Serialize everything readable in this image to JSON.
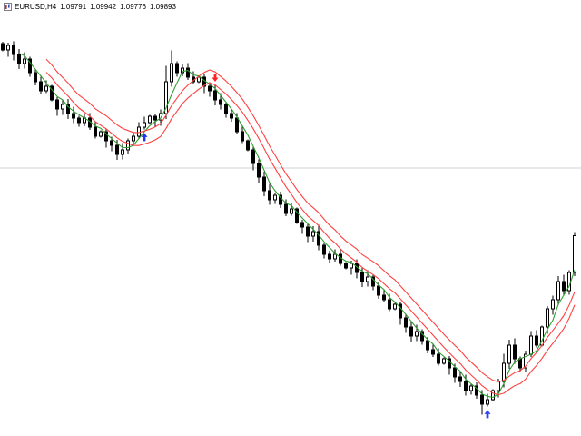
{
  "header": {
    "symbol": "EURUSD,H4",
    "open": "1.09791",
    "high": "1.09942",
    "low": "1.09776",
    "close": "1.09893"
  },
  "chart_data": {
    "type": "candlestick",
    "title": "EURUSD H4 price chart with moving-average envelope and arrow signals",
    "symbol": "EURUSD",
    "timeframe": "H4",
    "last_bar": {
      "open": 1.09791,
      "high": 1.09942,
      "low": 1.09776,
      "close": 1.09893
    },
    "xlabel": "",
    "ylabel": "",
    "grid": false,
    "legend": false,
    "ylim": [
      1.0842,
      1.115
    ],
    "bar_px_spacing": 6,
    "closes": [
      1.11325,
      1.1136,
      1.1129,
      1.1122,
      1.11255,
      1.1115,
      1.1108,
      1.1101,
      1.11045,
      1.1094,
      1.1087,
      1.10905,
      1.10835,
      1.108,
      1.10765,
      1.108,
      1.1073,
      1.1066,
      1.10695,
      1.10625,
      1.1059,
      1.1052,
      1.10555,
      1.10625,
      1.1066,
      1.1073,
      1.10765,
      1.10814,
      1.10786,
      1.10835,
      1.1108,
      1.1122,
      1.1115,
      1.11185,
      1.11115,
      1.1108,
      1.11115,
      1.11045,
      1.1101,
      1.1094,
      1.10905,
      1.10835,
      1.108,
      1.10695,
      1.10625,
      1.10555,
      1.1045,
      1.10345,
      1.1024,
      1.1017,
      1.10205,
      1.10135,
      1.10065,
      1.101,
      1.09995,
      1.0996,
      1.0989,
      1.09925,
      1.0982,
      1.0975,
      1.09715,
      1.0975,
      1.0968,
      1.09645,
      1.0968,
      1.0961,
      1.0954,
      1.09575,
      1.09505,
      1.09435,
      1.094,
      1.0933,
      1.09365,
      1.0926,
      1.0919,
      1.0912,
      1.09155,
      1.09085,
      1.09015,
      1.0898,
      1.0891,
      1.08945,
      1.08875,
      1.08805,
      1.0877,
      1.087,
      1.08735,
      1.08665,
      1.08595,
      1.0863,
      1.087,
      1.0877,
      1.0891,
      1.0905,
      1.08945,
      1.08875,
      1.0898,
      1.0912,
      1.0905,
      1.0919,
      1.0933,
      1.094,
      1.0954,
      1.0947,
      1.0961,
      1.09893
    ],
    "extra_wicks": {
      "30": {
        "up": 0.0008
      },
      "31": {
        "up": 0.0005
      },
      "88": {
        "down": 0.0006
      },
      "92": {
        "up": 0.0004
      }
    },
    "indicators": [
      {
        "name": "ma-fast",
        "type": "sma",
        "period": 4,
        "offset": 0.0,
        "color": "#2e9e2e"
      },
      {
        "name": "envelope-upper",
        "type": "sma",
        "period": 9,
        "offset": 0.0006,
        "color": "#ff4040"
      },
      {
        "name": "envelope-lower",
        "type": "sma",
        "period": 9,
        "offset": -0.0004,
        "color": "#ff4040"
      }
    ],
    "signals": [
      {
        "index": 26,
        "direction": "up",
        "color": "#2233ee"
      },
      {
        "index": 39,
        "direction": "down",
        "color": "#ff2222"
      },
      {
        "index": 89,
        "direction": "up",
        "color": "#3344ee"
      }
    ],
    "hline": {
      "price": 1.10415,
      "color": "#d0d0d0"
    },
    "colors": {
      "bull": "#ffffff",
      "bear": "#000000",
      "outline": "#000000",
      "background": "#ffffff"
    }
  }
}
